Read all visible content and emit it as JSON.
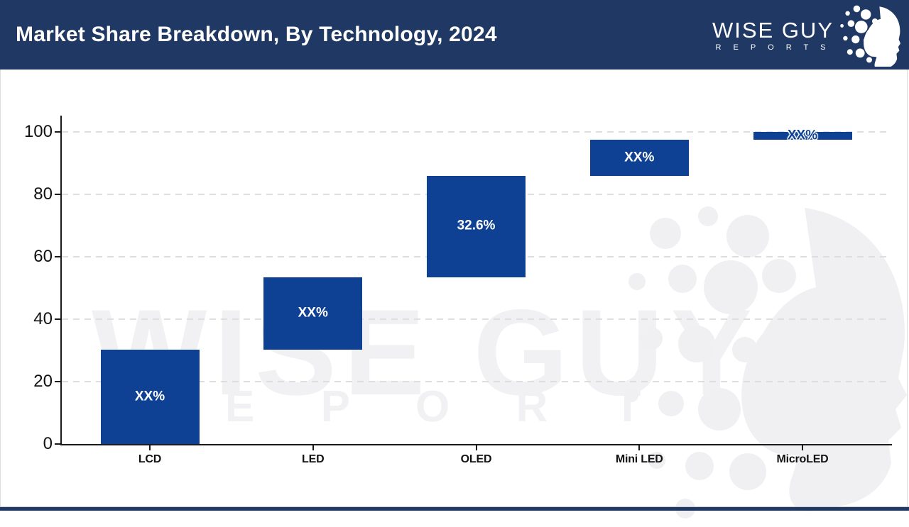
{
  "header": {
    "title": "Market Share Breakdown, By Technology, 2024",
    "logo": {
      "name": "Wise Guy Reports",
      "line1": "WISE GUY",
      "line2": "R E P O R T S"
    }
  },
  "watermark": {
    "line1": "WISE GUY",
    "line2": "R E P O R T S"
  },
  "chart_data": {
    "type": "bar",
    "subtype": "waterfall-floating-bars",
    "title": "Market Share Breakdown, By Technology, 2024",
    "categories": [
      "LCD",
      "LED",
      "OLED",
      "Mini LED",
      "MicroLED"
    ],
    "segments": [
      {
        "category": "LCD",
        "start": 0,
        "end": 30.2,
        "label": "XX%"
      },
      {
        "category": "LED",
        "start": 30.2,
        "end": 53.4,
        "label": "XX%"
      },
      {
        "category": "OLED",
        "start": 53.4,
        "end": 86.0,
        "label": "32.6%"
      },
      {
        "category": "Mini LED",
        "start": 86.0,
        "end": 97.4,
        "label": "XX%"
      },
      {
        "category": "MicroLED",
        "start": 97.4,
        "end": 100.0,
        "label": "XX%"
      }
    ],
    "xlabel": "",
    "ylabel": "",
    "ylim": [
      0,
      100
    ],
    "yticks": [
      0,
      20,
      40,
      60,
      80,
      100
    ],
    "grid": "horizontal-dashed",
    "legend": "none",
    "colors": {
      "bar": "#0e4194",
      "bar_label": "#ffffff",
      "grid": "#dedede",
      "axis": "#1a1a1a",
      "header_bg": "#1f3864",
      "watermark": "#f1f1f4"
    }
  }
}
